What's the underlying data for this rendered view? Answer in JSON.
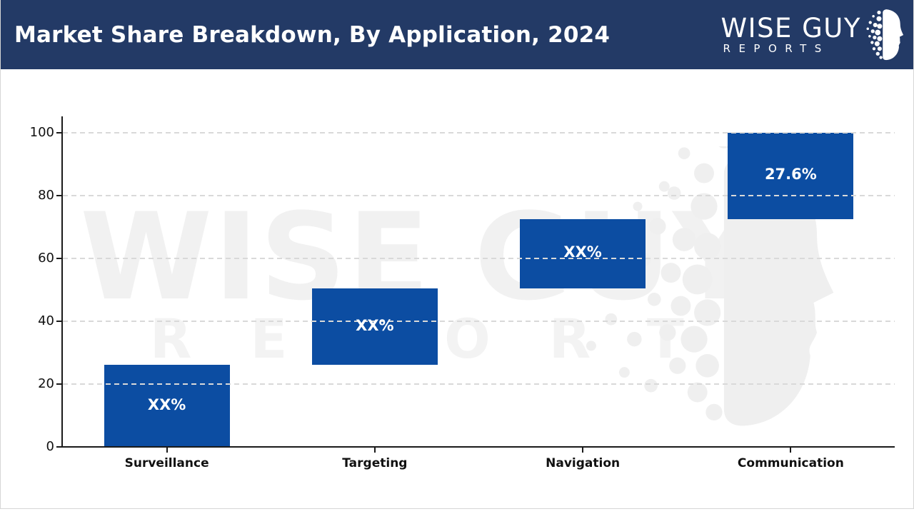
{
  "header": {
    "title": "Market Share Breakdown, By Application, 2024",
    "logo": {
      "line1": "WISE GUY",
      "line2": "REPORTS"
    }
  },
  "watermark": {
    "line1": "WISE GUY",
    "line2": "REPORTS"
  },
  "colors": {
    "header_bg": "#233a66",
    "bar": "#0c4da2",
    "bar_label": "#ffffff",
    "axis": "#1a1a1a",
    "grid": "#d9d9d9",
    "watermark": "#f1f1f1",
    "frame_border": "#d6d6d6"
  },
  "chart_data": {
    "type": "bar",
    "subtype": "waterfall",
    "title": "Market Share Breakdown, By Application, 2024",
    "categories": [
      "Surveillance",
      "Targeting",
      "Navigation",
      "Communication"
    ],
    "series": [
      {
        "name": "Market Share %",
        "segments": [
          [
            0,
            26
          ],
          [
            26,
            50.5
          ],
          [
            50.5,
            72.4
          ],
          [
            72.4,
            100
          ]
        ],
        "labels": [
          "XX%",
          "XX%",
          "XX%",
          "27.6%"
        ]
      }
    ],
    "ylim": [
      0,
      100
    ],
    "yticks": [
      0,
      20,
      40,
      60,
      80,
      100
    ],
    "xlabel": "",
    "ylabel": "",
    "grid": "horizontal-dashed",
    "legend": "none"
  }
}
